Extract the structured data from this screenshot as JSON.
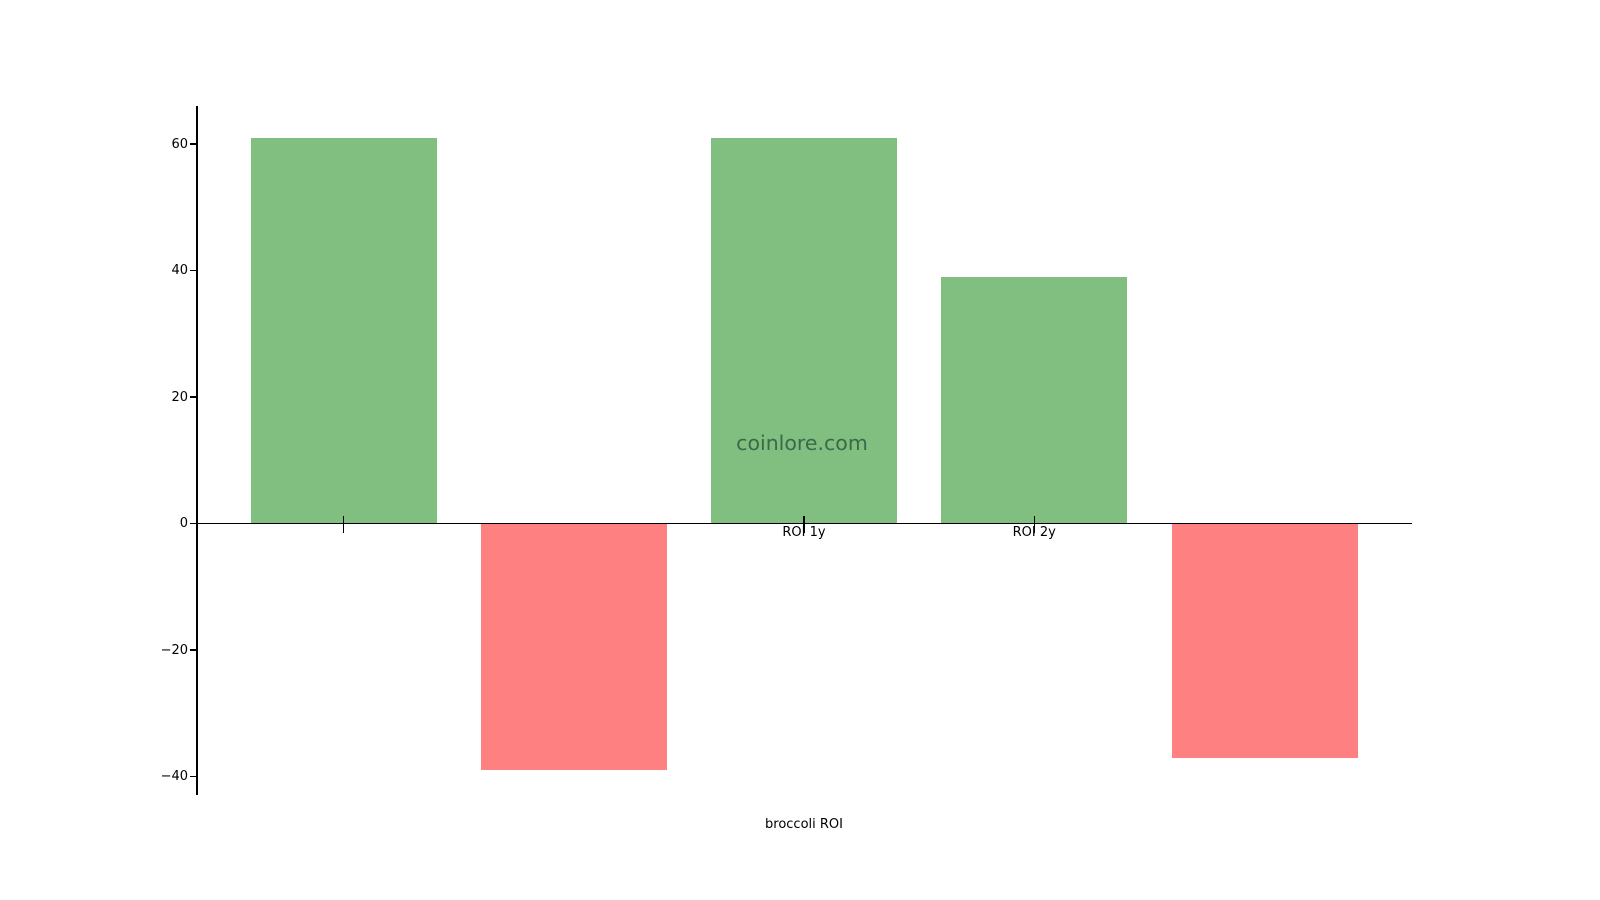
{
  "chart_data": {
    "type": "bar",
    "title": "",
    "xlabel": "broccoli ROI",
    "ylabel": "",
    "categories": [
      "",
      "",
      "ROI 1y",
      "ROI 2y",
      ""
    ],
    "values": [
      61,
      -39,
      61,
      39,
      -37
    ],
    "bars": [
      {
        "label": "",
        "value": 61,
        "color": "#80bf80",
        "tick_visible": true
      },
      {
        "label": "",
        "value": -39,
        "color": "#ff8080",
        "tick_visible": false
      },
      {
        "label": "ROI 1y",
        "value": 61,
        "color": "#80bf80",
        "tick_visible": true
      },
      {
        "label": "ROI 2y",
        "value": 39,
        "color": "#80bf80",
        "tick_visible": true
      },
      {
        "label": "",
        "value": -37,
        "color": "#ff8080",
        "tick_visible": false
      }
    ],
    "positive_color": "#80bf80",
    "negative_color": "#ff8080",
    "yticks": [
      {
        "value": 60,
        "label": "60"
      },
      {
        "value": 40,
        "label": "40"
      },
      {
        "value": 20,
        "label": "20"
      },
      {
        "value": 0,
        "label": "0"
      },
      {
        "value": -20,
        "label": "−20"
      },
      {
        "value": -40,
        "label": "−40"
      }
    ],
    "ylim": [
      -44,
      66
    ],
    "grid": false,
    "legend": null,
    "watermark": "coinlore.com",
    "watermark_color": "#3c6948"
  }
}
